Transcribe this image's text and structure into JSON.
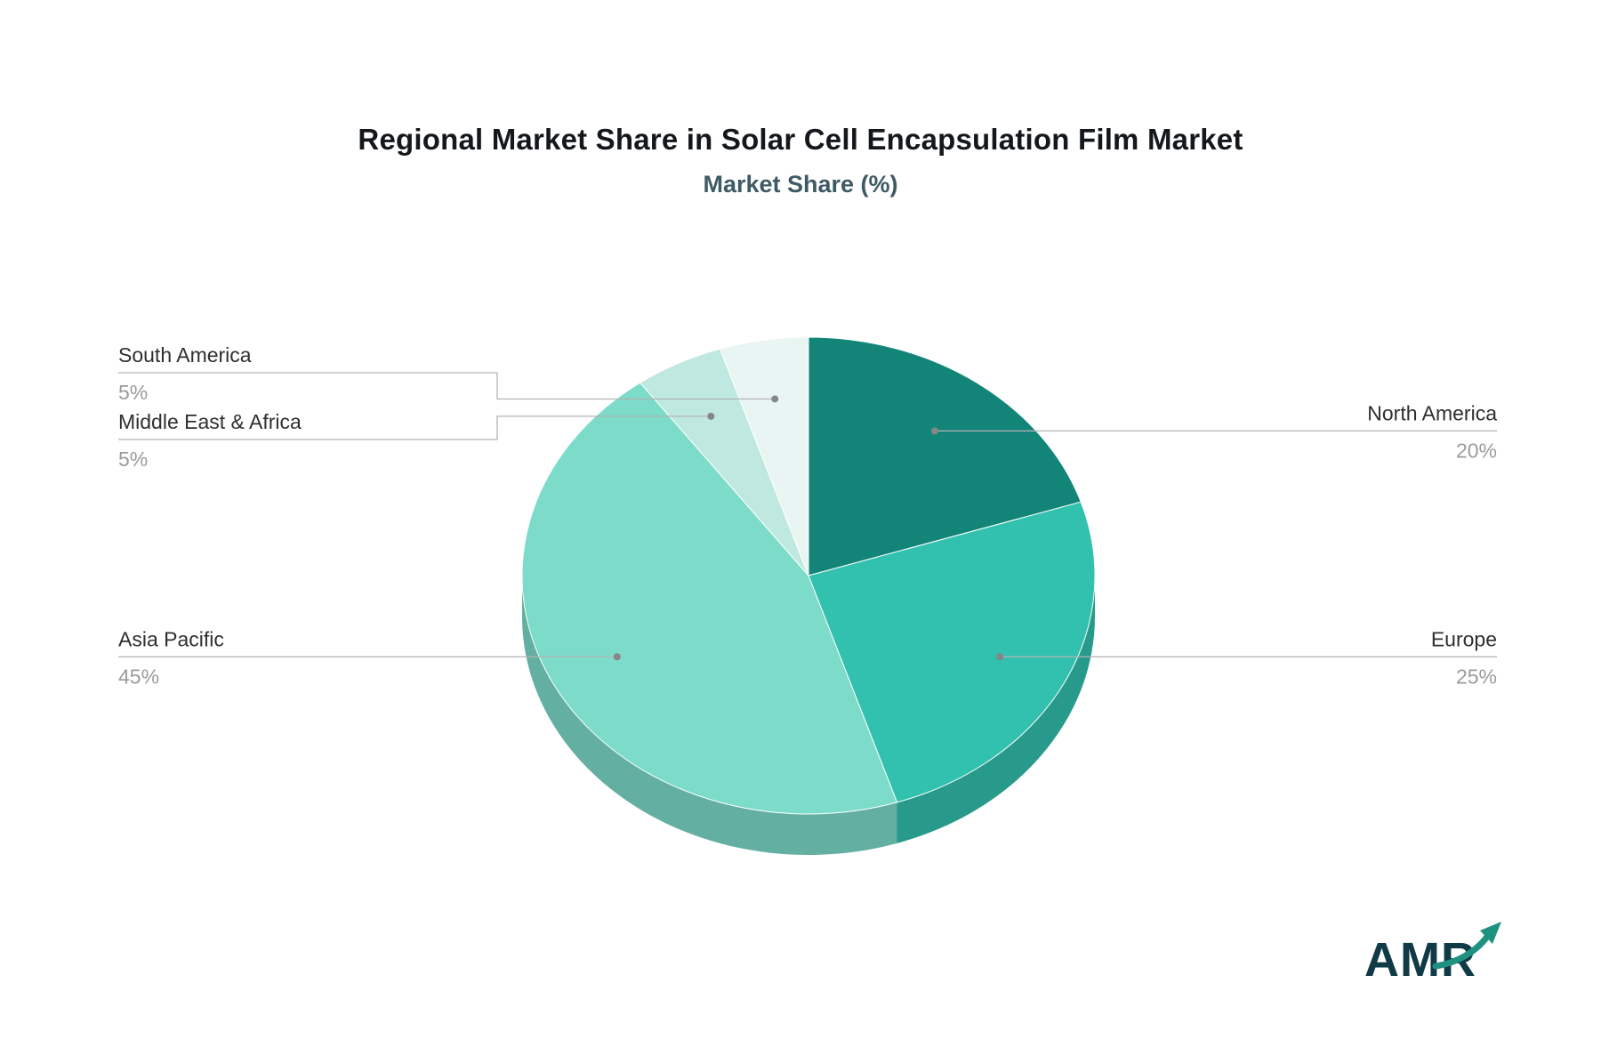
{
  "page": {
    "background": "#ffffff"
  },
  "header": {
    "title": "Regional Market Share in Solar Cell Encapsulation Film Market",
    "subtitle": "Market Share (%)"
  },
  "chart_data": {
    "type": "pie",
    "title": "Regional Market Share in Solar Cell Encapsulation Film Market",
    "subtitle": "Market Share (%)",
    "unit": "%",
    "style": "3d",
    "direction": "clockwise",
    "start_angle_deg": 0,
    "labels": [
      "North America",
      "Europe",
      "Asia Pacific",
      "Middle East & Africa",
      "South America"
    ],
    "values": [
      20,
      25,
      45,
      5,
      5
    ],
    "colors": [
      "#138578",
      "#31c1ae",
      "#7cdbc9",
      "#bfe9e0",
      "#e9f5f2"
    ],
    "label_line_color": "#b3b3b3",
    "label_dot_color": "#868686",
    "label_text_color": "#2f2f2f",
    "value_text_color": "#9b9b9b",
    "legend_position": "none",
    "grid": false
  },
  "logo": {
    "text": "AMR",
    "color": "#0f3a46",
    "arrow_color": "#1f9180"
  }
}
